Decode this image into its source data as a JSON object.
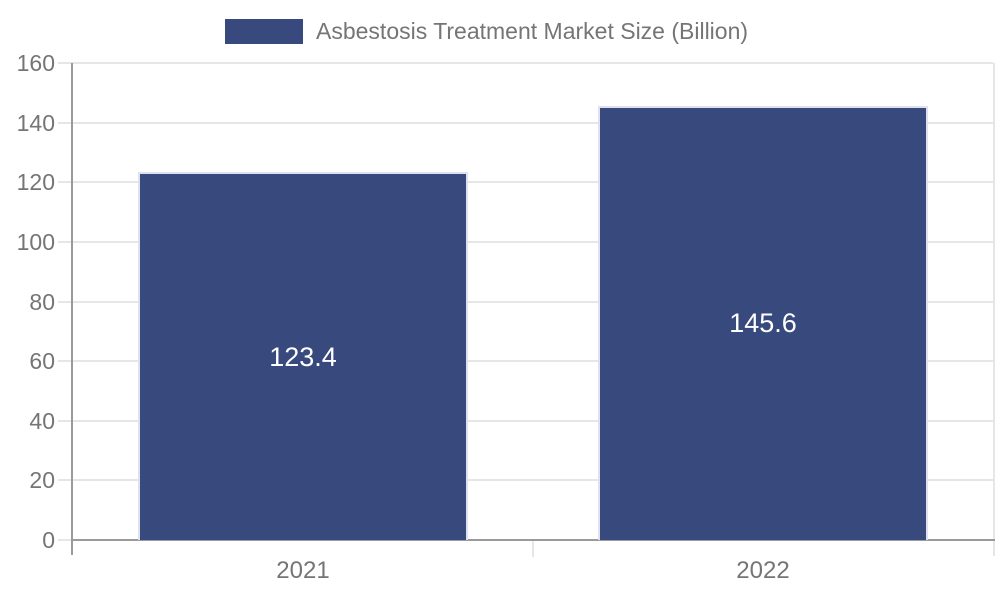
{
  "chart_data": {
    "type": "bar",
    "categories": [
      "2021",
      "2022"
    ],
    "series": [
      {
        "name": "Asbestosis Treatment Market Size (Billion)",
        "values": [
          123.4,
          145.6
        ]
      }
    ],
    "data_labels": [
      "123.4",
      "145.6"
    ],
    "yticks": [
      0,
      20,
      40,
      60,
      80,
      100,
      120,
      140,
      160
    ],
    "ylim": [
      0,
      160
    ],
    "xlabel": "",
    "ylabel": "",
    "grid": true,
    "legend_position": "top"
  },
  "colors": {
    "background": "#ffffff",
    "bar": "#38497e",
    "bar_border": "#dfe2ee",
    "grid": "#e6e6e6",
    "axis": "#9a9a9a",
    "tick_text": "#757575",
    "legend_text": "#757575",
    "data_label": "#ffffff"
  }
}
